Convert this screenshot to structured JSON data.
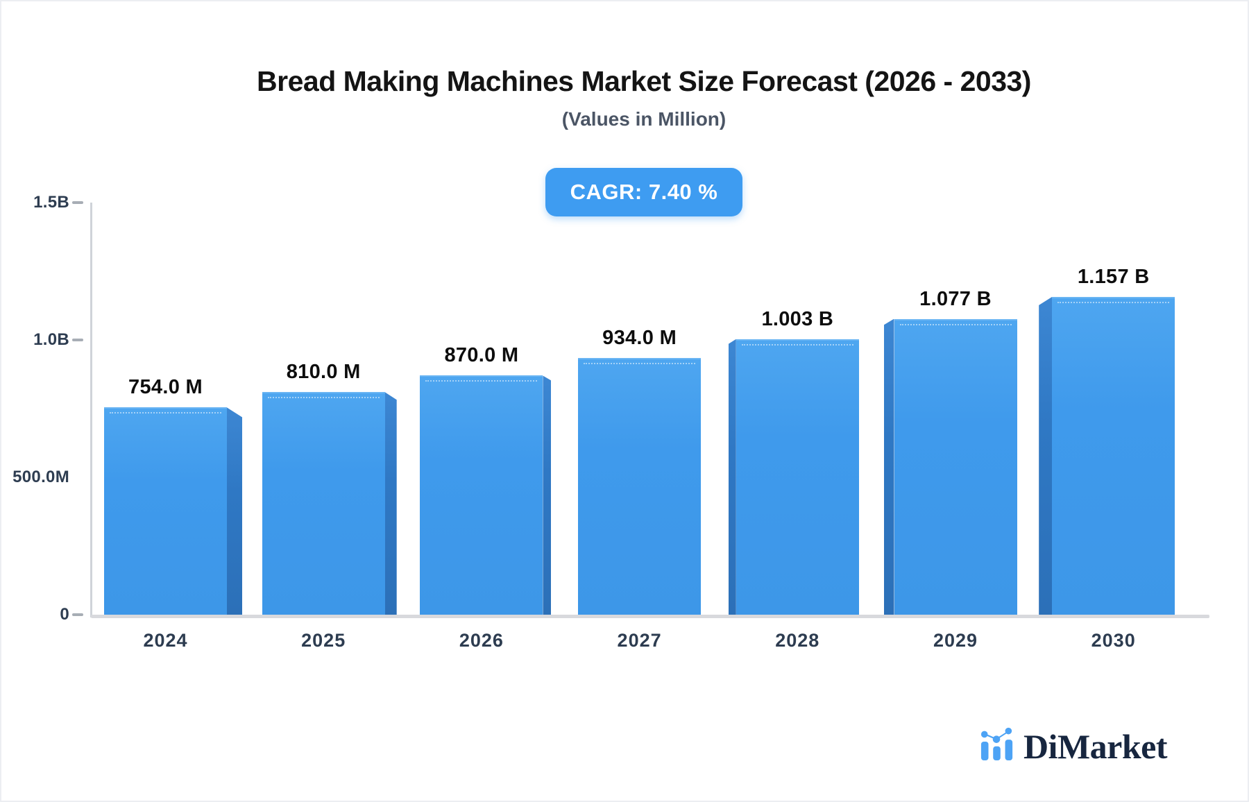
{
  "header": {
    "title": "Bread Making Machines Market Size Forecast (2026 - 2033)",
    "subtitle": "(Values in Million)",
    "cagr_label": "CAGR: 7.40 %",
    "badge_color": "#3e9cf1"
  },
  "chart_data": {
    "type": "bar",
    "title": "Bread Making Machines Market Size Forecast (2026 - 2033)",
    "subtitle": "(Values in Million)",
    "cagr_percent": 7.4,
    "categories": [
      "2024",
      "2025",
      "2026",
      "2027",
      "2028",
      "2029",
      "2030"
    ],
    "values_millions": [
      754,
      810,
      870,
      934,
      1003,
      1077,
      1157
    ],
    "bar_labels": [
      "754.0 M",
      "810.0 M",
      "870.0 M",
      "934.0 M",
      "1.003 B",
      "1.077 B",
      "1.157 B"
    ],
    "xlabel": "",
    "ylabel": "",
    "ylim_millions": [
      0,
      1500
    ],
    "y_ticks": [
      {
        "label": "1.5B",
        "value_millions": 1500,
        "tick": true
      },
      {
        "label": "1.0B",
        "value_millions": 1000,
        "tick": true
      },
      {
        "label": "500.0M",
        "value_millions": 500,
        "tick": false
      },
      {
        "label": "0",
        "value_millions": 0,
        "tick": true
      }
    ],
    "grid": false,
    "legend": false,
    "bar_color": "#3f9aec",
    "bar_side_color": "#2f78c4"
  },
  "footer": {
    "brand": "DiMarket"
  }
}
